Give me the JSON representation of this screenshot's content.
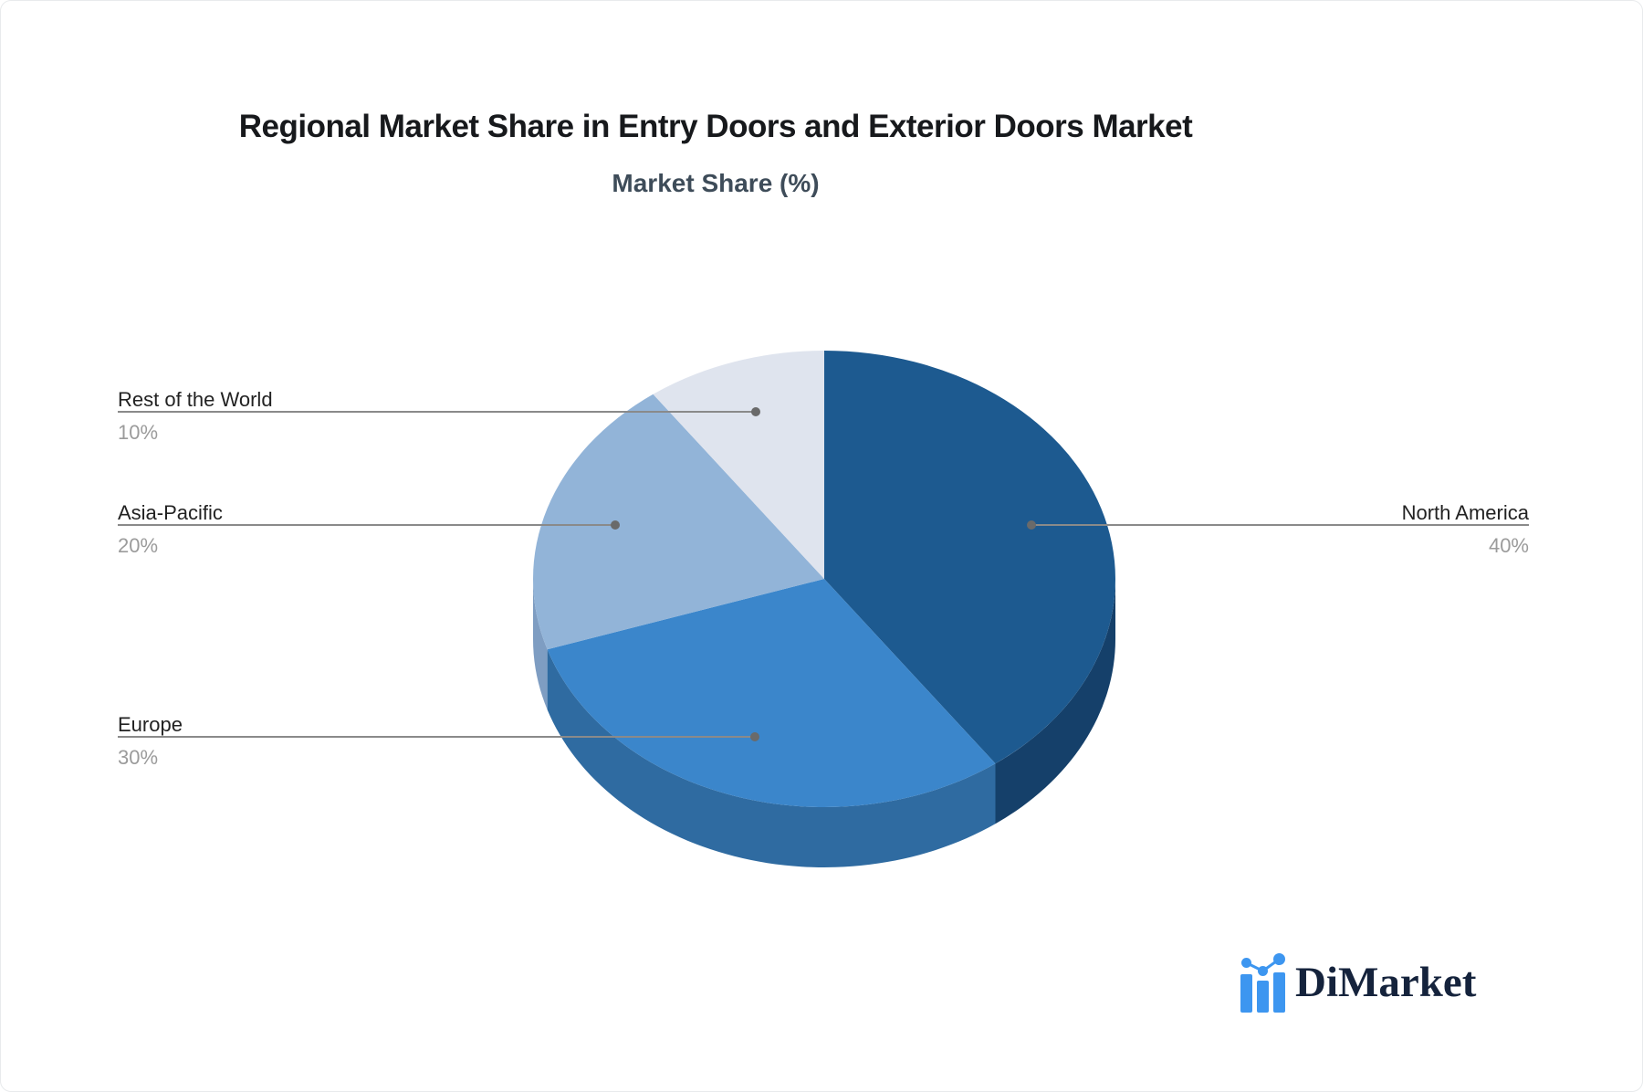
{
  "title": "Regional Market Share in Entry Doors and Exterior Doors Market",
  "subtitle": "Market Share (%)",
  "chart_data": {
    "type": "pie",
    "title": "Regional Market Share in Entry Doors and Exterior Doors Market",
    "subtitle": "Market Share (%)",
    "unit": "%",
    "start_angle_deg": 90,
    "direction": "clockwise",
    "style": "3d-depth-pie",
    "legend_position": "callout-labels",
    "segments": [
      {
        "label": "North America",
        "value": 40,
        "pct_label": "40%",
        "color": "#1d5a90",
        "rim_color": "#15406a"
      },
      {
        "label": "Europe",
        "value": 30,
        "pct_label": "30%",
        "color": "#3b86cb",
        "rim_color": "#2f6ba1"
      },
      {
        "label": "Asia-Pacific",
        "value": 20,
        "pct_label": "20%",
        "color": "#92b4d8",
        "rim_color": "#7e9dc2"
      },
      {
        "label": "Rest of the World",
        "value": 10,
        "pct_label": "10%",
        "color": "#dfe4ee",
        "rim_color": "#c2cada"
      }
    ]
  },
  "callouts": {
    "rest_of_world": {
      "name": "Rest of the World",
      "pct": "10%"
    },
    "asia_pacific": {
      "name": "Asia-Pacific",
      "pct": "20%"
    },
    "europe": {
      "name": "Europe",
      "pct": "30%"
    },
    "north_america": {
      "name": "North America",
      "pct": "40%"
    }
  },
  "brand": {
    "name": "DiMarket",
    "icon": "bar-chart-logo-icon",
    "icon_color": "#3d96f0",
    "text_color": "#15233c"
  },
  "colors": {
    "leader_line": "#8a8a8a",
    "leader_dot": "#6a6a6a",
    "label_text": "#222222",
    "pct_text": "#9b9b9b",
    "title_text": "#17191c",
    "subtitle_text": "#3e4c59"
  }
}
